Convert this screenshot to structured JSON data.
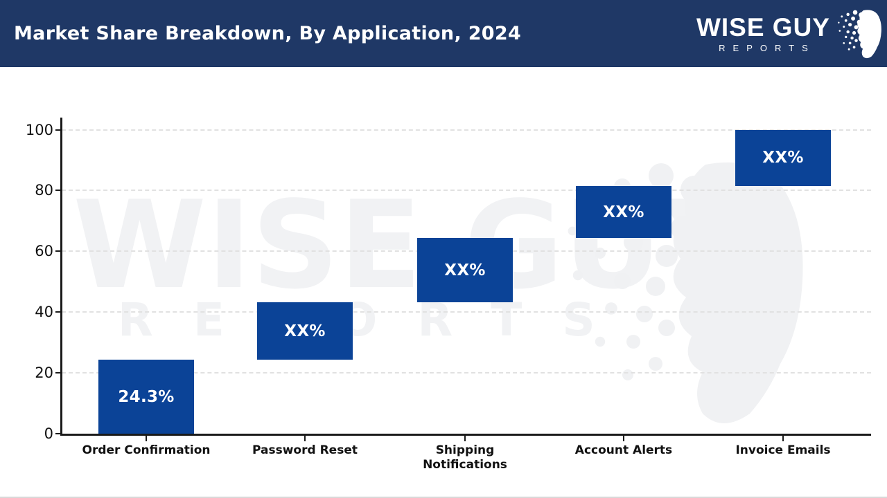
{
  "header": {
    "title": "Market Share Breakdown, By Application, 2024",
    "bg_color": "#1F3866",
    "logo": {
      "line1": "WISE GUY",
      "line2": "REPORTS"
    }
  },
  "watermark": {
    "line1": "WISE GUY",
    "line2": "REPORTS"
  },
  "colors": {
    "bar": "#0B4397",
    "bar_label": "#FFFFFF",
    "header_bg": "#1F3866",
    "gridline": "#E1E1E1",
    "watermark": "#F1F2F4"
  },
  "chart_data": {
    "type": "bar",
    "subtype": "waterfall-floating-bars",
    "title": "Market Share Breakdown, By Application, 2024",
    "categories": [
      "Order Confirmation",
      "Password Reset",
      "Shipping Notifications",
      "Account Alerts",
      "Invoice Emails"
    ],
    "category_label_lines": [
      [
        "Order Confirmation"
      ],
      [
        "Password Reset"
      ],
      [
        "Shipping",
        "Notifications"
      ],
      [
        "Account Alerts"
      ],
      [
        "Invoice Emails"
      ]
    ],
    "segments": [
      {
        "category": "Order Confirmation",
        "start": 0,
        "end": 24.3,
        "label": "24.3%"
      },
      {
        "category": "Password Reset",
        "start": 24.3,
        "end": 43.2,
        "label": "XX%"
      },
      {
        "category": "Shipping Notifications",
        "start": 43.2,
        "end": 64.3,
        "label": "XX%"
      },
      {
        "category": "Account Alerts",
        "start": 64.3,
        "end": 81.5,
        "label": "XX%"
      },
      {
        "category": "Invoice Emails",
        "start": 81.5,
        "end": 100,
        "label": "XX%"
      }
    ],
    "xlabel": "",
    "ylabel": "",
    "ylim": [
      0,
      100
    ],
    "yticks": [
      0,
      20,
      40,
      60,
      80,
      100
    ],
    "grid": "horizontal dashed, on",
    "legend": "none"
  }
}
